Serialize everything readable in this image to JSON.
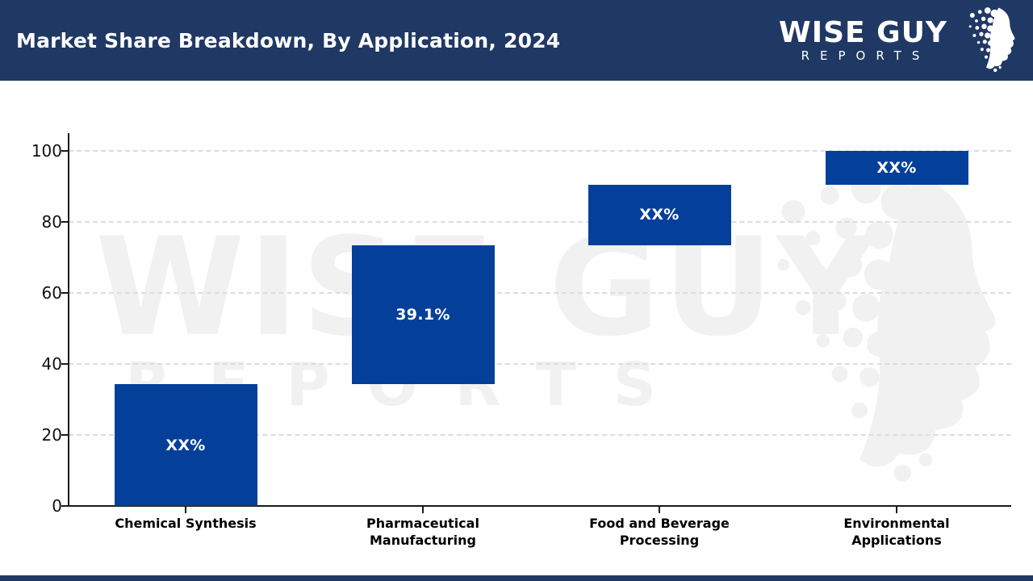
{
  "header": {
    "title": "Market Share Breakdown, By Application, 2024",
    "logo": {
      "line1": "WISE GUY",
      "line2": "REPORTS"
    }
  },
  "watermark": {
    "line1": "WISE GUY",
    "line2": "REPORTS"
  },
  "footer": {},
  "colors": {
    "header_bg": "#203864",
    "bar_blue": "#04409a",
    "grid_gray": "#dcdcdc",
    "watermark_gray": "#f1f1f1",
    "axis_black": "#1a1a1a",
    "label_white": "#ffffff"
  },
  "chart_data": {
    "type": "bar",
    "subtype": "waterfall-stacked-floating",
    "title": "Market Share Breakdown, By Application, 2024",
    "categories": [
      "Chemical Synthesis",
      "Pharmaceutical\nManufacturing",
      "Food and Beverage\nProcessing",
      "Environmental\nApplications"
    ],
    "segments": [
      {
        "category": "Chemical Synthesis",
        "start": 0,
        "end": 34.3,
        "value": 34.3,
        "label": "XX%"
      },
      {
        "category": "Pharmaceutical Manufacturing",
        "start": 34.3,
        "end": 73.4,
        "value": 39.1,
        "label": "39.1%"
      },
      {
        "category": "Food and Beverage Processing",
        "start": 73.4,
        "end": 90.5,
        "value": 17.1,
        "label": "XX%"
      },
      {
        "category": "Environmental Applications",
        "start": 90.5,
        "end": 100,
        "value": 9.5,
        "label": "XX%"
      }
    ],
    "yticks": [
      0,
      20,
      40,
      60,
      80,
      100
    ],
    "ylim": [
      0,
      105
    ],
    "xlabel": "",
    "ylabel": "",
    "grid": "horizontal-dashed",
    "legend": "none",
    "bar_color": "#04409a",
    "label_color": "#ffffff"
  }
}
